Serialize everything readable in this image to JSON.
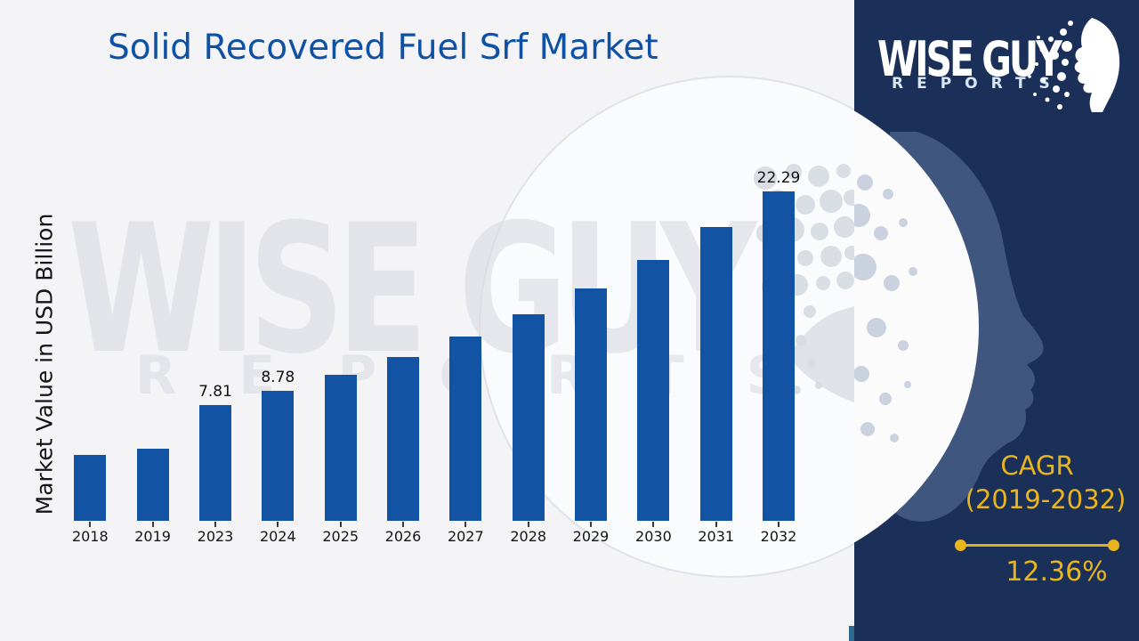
{
  "title": "Solid Recovered Fuel Srf Market",
  "brand": {
    "name": "WISE GUY",
    "sub": "REPORTS"
  },
  "watermark": {
    "line1": "WISE GUY",
    "line2": "REPORTS"
  },
  "cagr": {
    "label": "CAGR",
    "range": "(2019-2032)",
    "value": "12.36%"
  },
  "colors": {
    "bar": "#1253a3",
    "title_blue": "#0e51a5",
    "panel_navy": "#1b3058",
    "accent_gold": "#e9b51f",
    "face_steel_blue": "#3f577f",
    "background": "#f4f4f6"
  },
  "chart_data": {
    "type": "bar",
    "title": "Solid Recovered Fuel Srf Market",
    "xlabel": "",
    "ylabel": "Market Value in USD Billion",
    "categories": [
      "2018",
      "2019",
      "2023",
      "2024",
      "2025",
      "2026",
      "2027",
      "2028",
      "2029",
      "2030",
      "2031",
      "2032"
    ],
    "values": [
      4.48,
      4.9,
      7.81,
      8.78,
      9.87,
      11.09,
      12.46,
      14.0,
      15.73,
      17.67,
      19.86,
      22.29
    ],
    "data_labels": {
      "2023": "7.81",
      "2024": "8.78",
      "2032": "22.29"
    },
    "ylim": [
      0,
      23.5
    ],
    "grid": false,
    "legend": null,
    "bar_color": "#1253a3"
  }
}
